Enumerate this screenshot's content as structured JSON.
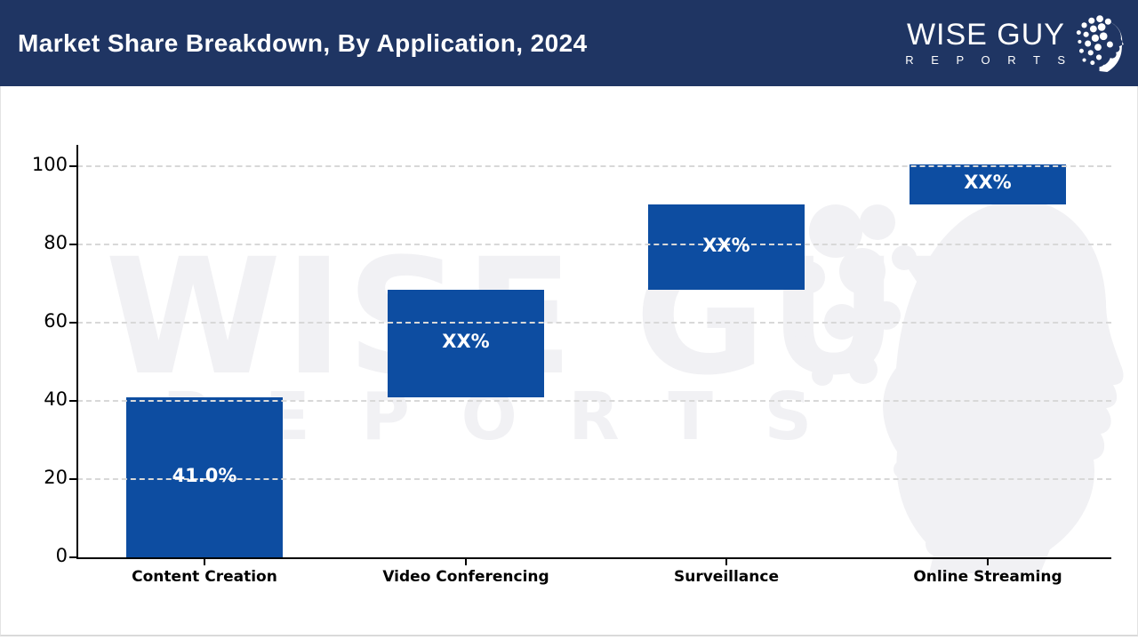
{
  "header": {
    "title": "Market Share Breakdown, By Application, 2024",
    "logo": {
      "line1": "WISE GUY",
      "line2": "R E P O R T S"
    }
  },
  "watermark": {
    "line1": "WISE GUY",
    "line2": "REPORTS"
  },
  "colors": {
    "header_bg": "#1f3563",
    "title_text": "#ffffff",
    "bar": "#0d4da1",
    "bar_label": "#ffffff",
    "grid": "#d8d8d8",
    "axis": "#000000",
    "watermark": "#f1f1f4"
  },
  "chart_data": {
    "type": "bar",
    "variant": "waterfall",
    "title": "Market Share Breakdown, By Application, 2024",
    "xlabel": "",
    "ylabel": "",
    "categories": [
      "Content Creation",
      "Video Conferencing",
      "Surveillance",
      "Online Streaming"
    ],
    "segments": [
      {
        "category": "Content Creation",
        "start": 0,
        "end": 41.0,
        "label": "41.0%"
      },
      {
        "category": "Video Conferencing",
        "start": 41.0,
        "end": 68.4,
        "label": "XX%"
      },
      {
        "category": "Surveillance",
        "start": 68.4,
        "end": 90.2,
        "label": "XX%"
      },
      {
        "category": "Online Streaming",
        "start": 90.2,
        "end": 100.5,
        "label": "XX%"
      }
    ],
    "yticks": [
      0,
      20,
      40,
      60,
      80,
      100
    ],
    "ylim": [
      0,
      105
    ],
    "grid": "horizontal-dashed",
    "grid_above_bars": true,
    "legend": "none"
  }
}
